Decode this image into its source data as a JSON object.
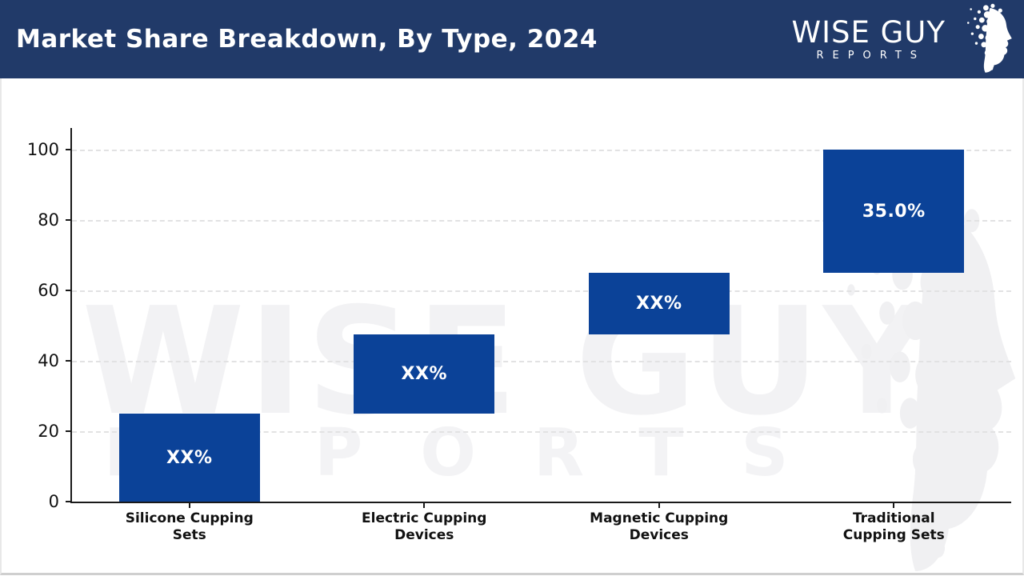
{
  "header": {
    "title": "Market Share Breakdown, By Type, 2024",
    "bg_color": "#213a69",
    "logo": {
      "name": "WISE GUY",
      "sub": "REPORTS"
    }
  },
  "watermark": {
    "line1": "WISE GUY",
    "line2": "REPORTS"
  },
  "chart_data": {
    "type": "bar",
    "subtype": "floating-waterfall",
    "title": "Market Share Breakdown, By Type, 2024",
    "categories": [
      {
        "lines": [
          "Silicone Cupping",
          "Sets"
        ]
      },
      {
        "lines": [
          "Electric Cupping",
          "Devices"
        ]
      },
      {
        "lines": [
          "Magnetic Cupping",
          "Devices"
        ]
      },
      {
        "lines": [
          "Traditional",
          "Cupping Sets"
        ]
      }
    ],
    "segments": [
      {
        "category": "Silicone Cupping Sets",
        "start": 0,
        "end": 25,
        "value": 25.0,
        "label": "XX%"
      },
      {
        "category": "Electric Cupping Devices",
        "start": 25,
        "end": 47.5,
        "value": 22.5,
        "label": "XX%"
      },
      {
        "category": "Magnetic Cupping Devices",
        "start": 47.5,
        "end": 65,
        "value": 17.5,
        "label": "XX%"
      },
      {
        "category": "Traditional Cupping Sets",
        "start": 65,
        "end": 100,
        "value": 35.0,
        "label": "35.0%"
      }
    ],
    "yticks": [
      0,
      20,
      40,
      60,
      80,
      100
    ],
    "ylim": [
      0,
      106
    ],
    "xlabel": "",
    "ylabel": "",
    "grid": "horizontal-dashed",
    "legend": null,
    "bar_color": "#0b4298",
    "bar_label_color": "#ffffff",
    "axis_color": "#1a1a1a",
    "gridline_color": "#e2e2e3"
  }
}
